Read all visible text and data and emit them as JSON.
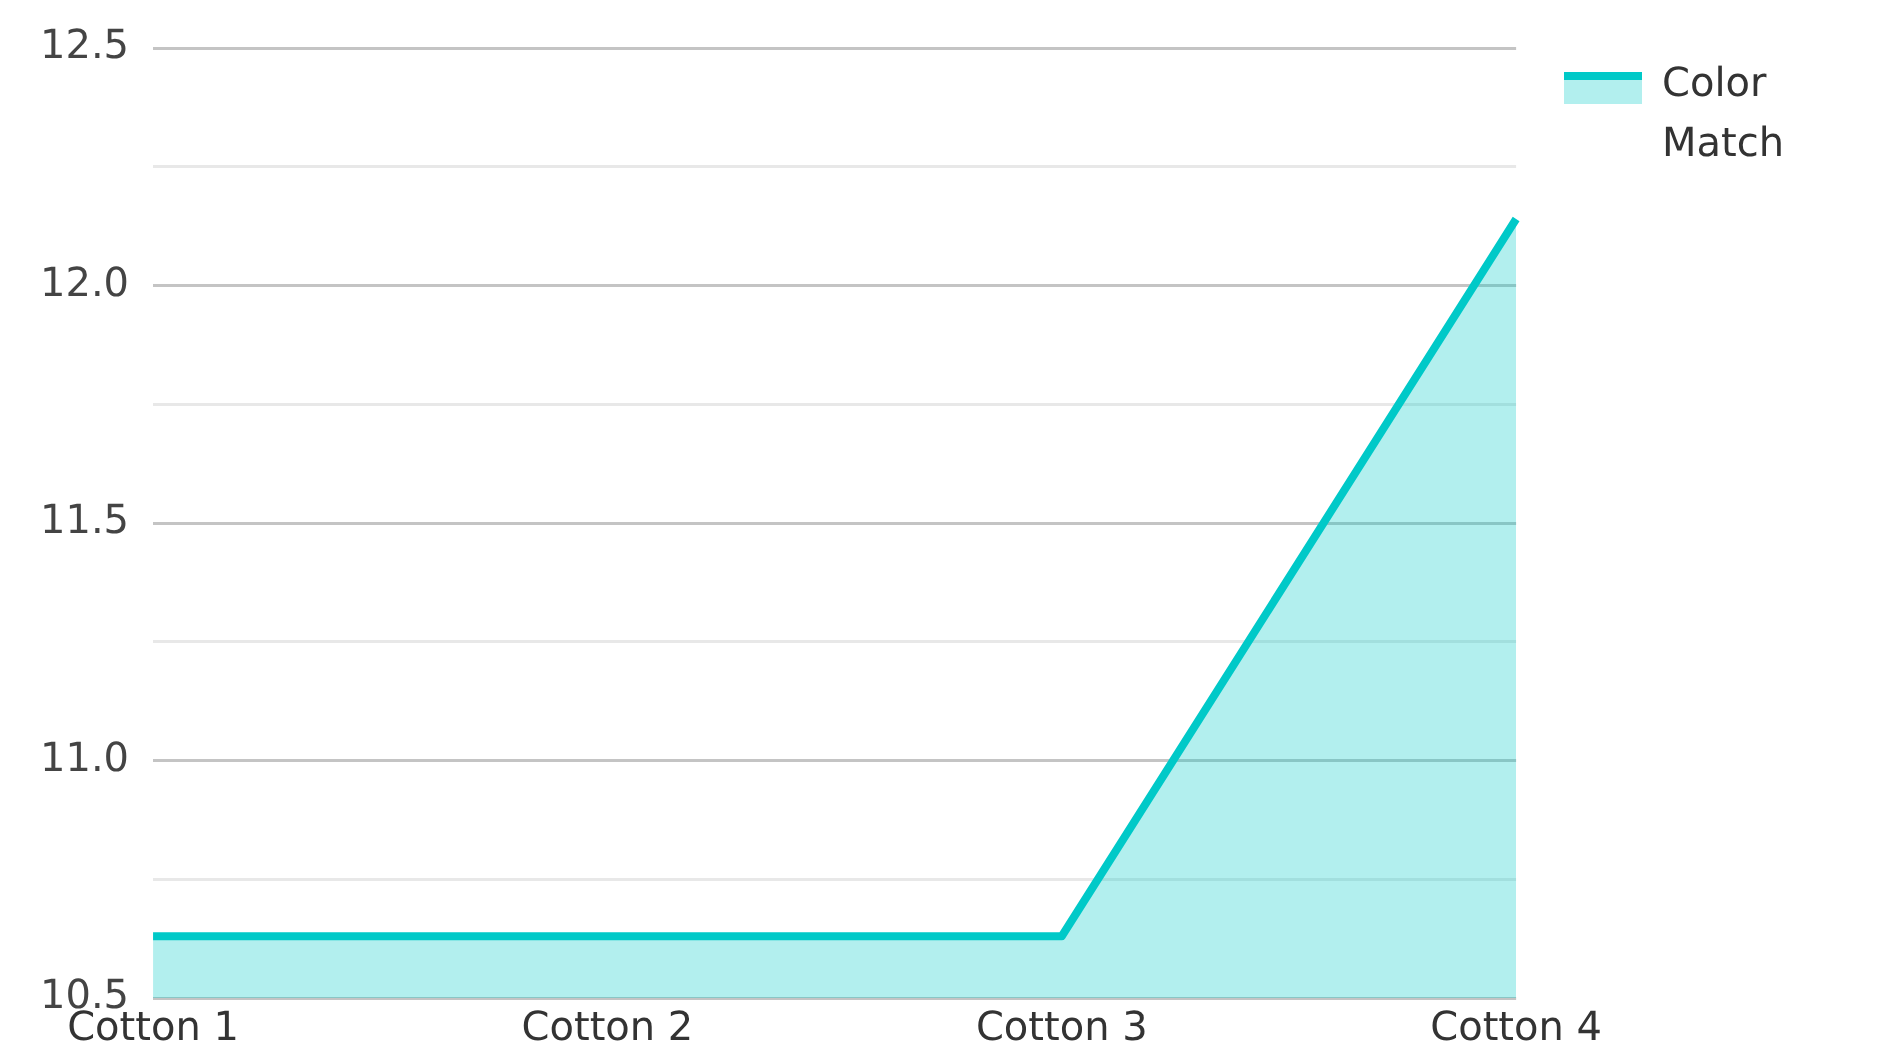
{
  "chart_data": {
    "type": "area",
    "categories": [
      "Cotton 1",
      "Cotton 2",
      "Cotton 3",
      "Cotton 4"
    ],
    "series": [
      {
        "name": "Color Match",
        "color": "#00c9c8",
        "values": [
          10.63,
          10.63,
          10.63,
          12.14
        ]
      }
    ],
    "ylim": [
      10.5,
      12.5
    ],
    "yticks": [
      10.5,
      {
        "value": 10.75,
        "label": null
      },
      {
        "value": 11,
        "label": "11.0"
      },
      {
        "value": 11.25,
        "label": null
      },
      11.5,
      {
        "value": 11.75,
        "label": null
      },
      {
        "value": 12,
        "label": "12.0"
      },
      {
        "value": 12.25,
        "label": null
      },
      12.5
    ],
    "grid": "y",
    "legend": "top right"
  }
}
